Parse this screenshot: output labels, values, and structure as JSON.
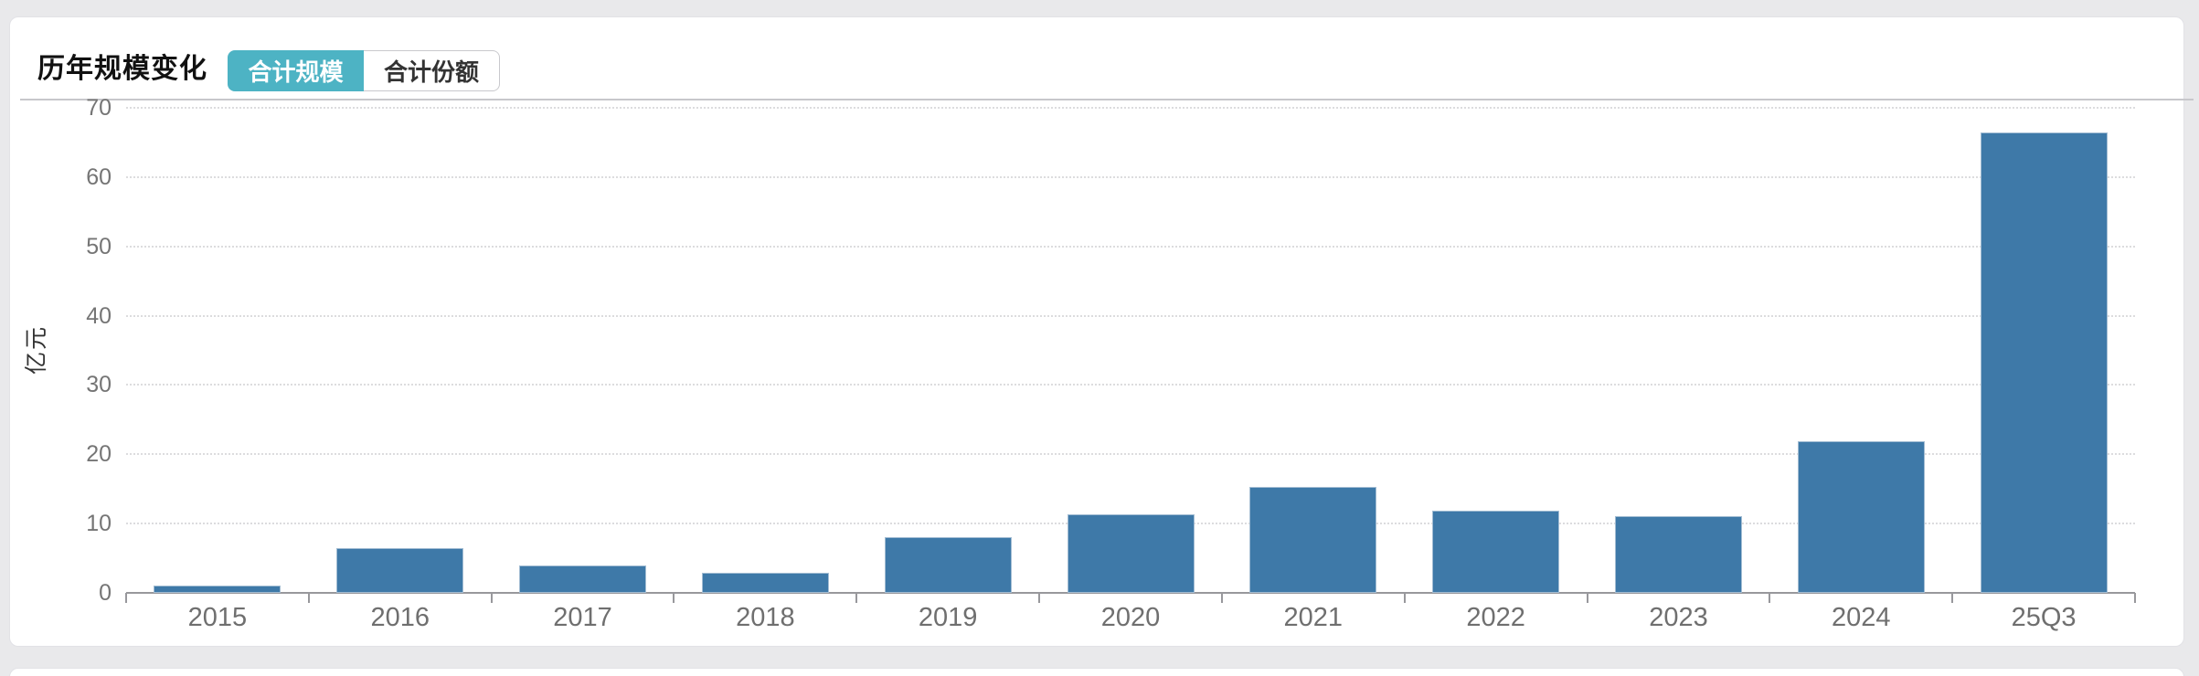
{
  "header": {
    "title": "历年规模变化",
    "tabs": [
      {
        "label": "合计规模",
        "active": true
      },
      {
        "label": "合计份额",
        "active": false
      }
    ]
  },
  "chart_data": {
    "type": "bar",
    "title": "历年规模变化",
    "categories": [
      "2015",
      "2016",
      "2017",
      "2018",
      "2019",
      "2020",
      "2021",
      "2022",
      "2023",
      "2024",
      "25Q3"
    ],
    "values": [
      1.0,
      6.5,
      4.0,
      2.9,
      8.1,
      11.4,
      15.3,
      11.9,
      11.1,
      21.9,
      66.4
    ],
    "xlabel": "",
    "ylabel": "亿元",
    "ylim": [
      0,
      70
    ],
    "yticks": [
      0,
      10,
      20,
      30,
      40,
      50,
      60,
      70
    ],
    "grid": "horizontal-dotted",
    "legend": "none",
    "bar_color": "#3e79a8"
  },
  "colors": {
    "page_background": "#e9e9eb",
    "card_background": "#ffffff",
    "tab_active_background": "#4db3c4",
    "tab_active_text": "#ffffff",
    "tab_inactive_text": "#333333",
    "bar": "#3e79a8",
    "axis_line": "#98989c",
    "gridline": "#dcdcde",
    "tick_label": "#757575"
  }
}
